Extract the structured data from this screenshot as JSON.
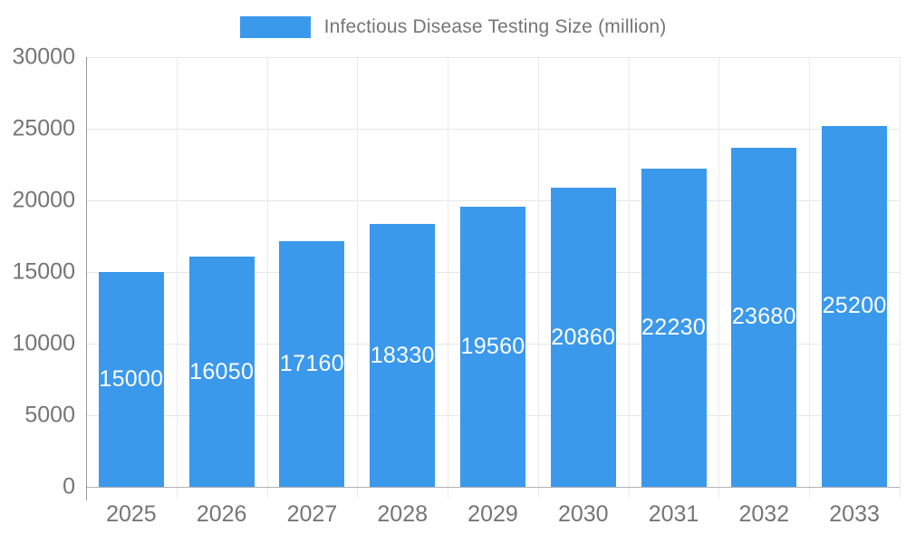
{
  "chart_data": {
    "type": "bar",
    "title": "Infectious Disease Testing Size (million)",
    "categories": [
      "2025",
      "2026",
      "2027",
      "2028",
      "2029",
      "2030",
      "2031",
      "2032",
      "2033"
    ],
    "values": [
      15000,
      16050,
      17160,
      18330,
      19560,
      20860,
      22230,
      23680,
      25200
    ],
    "series": [
      {
        "name": "Infectious Disease Testing Size (million)",
        "values": [
          15000,
          16050,
          17160,
          18330,
          19560,
          20860,
          22230,
          23680,
          25200
        ]
      }
    ],
    "xlabel": "",
    "ylabel": "",
    "ylim": [
      0,
      30000
    ],
    "y_ticks": [
      0,
      5000,
      10000,
      15000,
      20000,
      25000,
      30000
    ],
    "grid": true,
    "legend_position": "top-center",
    "bar_labels_visible": true,
    "colors": {
      "bar": "#3B99EC",
      "bar_label_text": "#ffffff",
      "axis_text": "#757575",
      "legend_text": "#757575",
      "gridline": "#e6e6e6",
      "axis_line": "#999999"
    }
  },
  "legend": {
    "label": "Infectious Disease Testing Size (million)"
  }
}
